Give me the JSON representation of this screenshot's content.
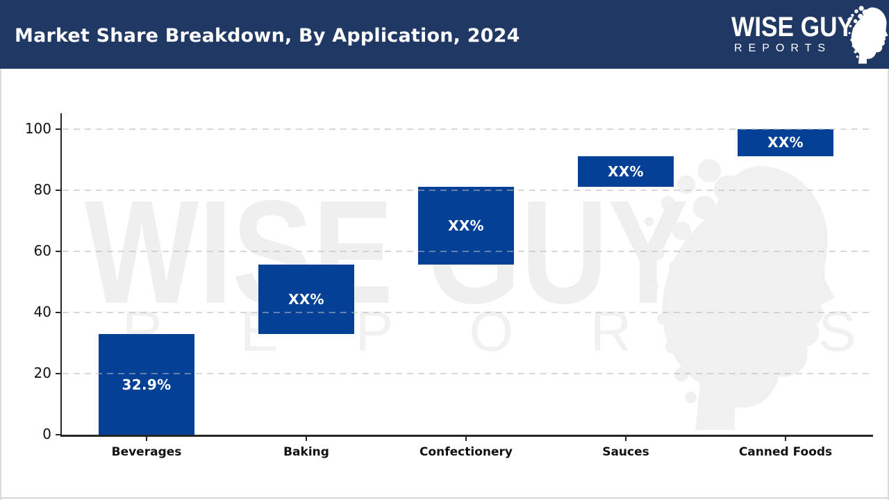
{
  "header": {
    "title": "Market Share Breakdown, By Application, 2024",
    "logo": {
      "line1": "WISE GUY",
      "line2": "REPORTS"
    }
  },
  "watermark": {
    "line1": "WISE GUY",
    "line2": "R E P O R T S"
  },
  "colors": {
    "header_bg": "#203864",
    "bar": "#034096",
    "grid": "#d9d9d9",
    "axis": "#262626",
    "value_label": "#ffffff",
    "watermark": "#f0f0f0"
  },
  "chart_data": {
    "type": "bar",
    "subtype": "waterfall",
    "title": "Market Share Breakdown, By Application, 2024",
    "xlabel": "",
    "ylabel": "",
    "categories": [
      "Beverages",
      "Baking",
      "Confectionery",
      "Sauces",
      "Canned Foods"
    ],
    "segments": [
      {
        "category": "Beverages",
        "start": 0,
        "end": 32.9,
        "label": "32.9%"
      },
      {
        "category": "Baking",
        "start": 32.9,
        "end": 55.6,
        "label": "XX%"
      },
      {
        "category": "Confectionery",
        "start": 55.6,
        "end": 81.1,
        "label": "XX%"
      },
      {
        "category": "Sauces",
        "start": 81.1,
        "end": 91.2,
        "label": "XX%"
      },
      {
        "category": "Canned Foods",
        "start": 91.2,
        "end": 100,
        "label": "XX%"
      }
    ],
    "yticks": [
      0,
      20,
      40,
      60,
      80,
      100
    ],
    "ylim": [
      0,
      105
    ],
    "grid": "dashed-horizontal",
    "legend": "none",
    "bar_color": "#034096"
  }
}
